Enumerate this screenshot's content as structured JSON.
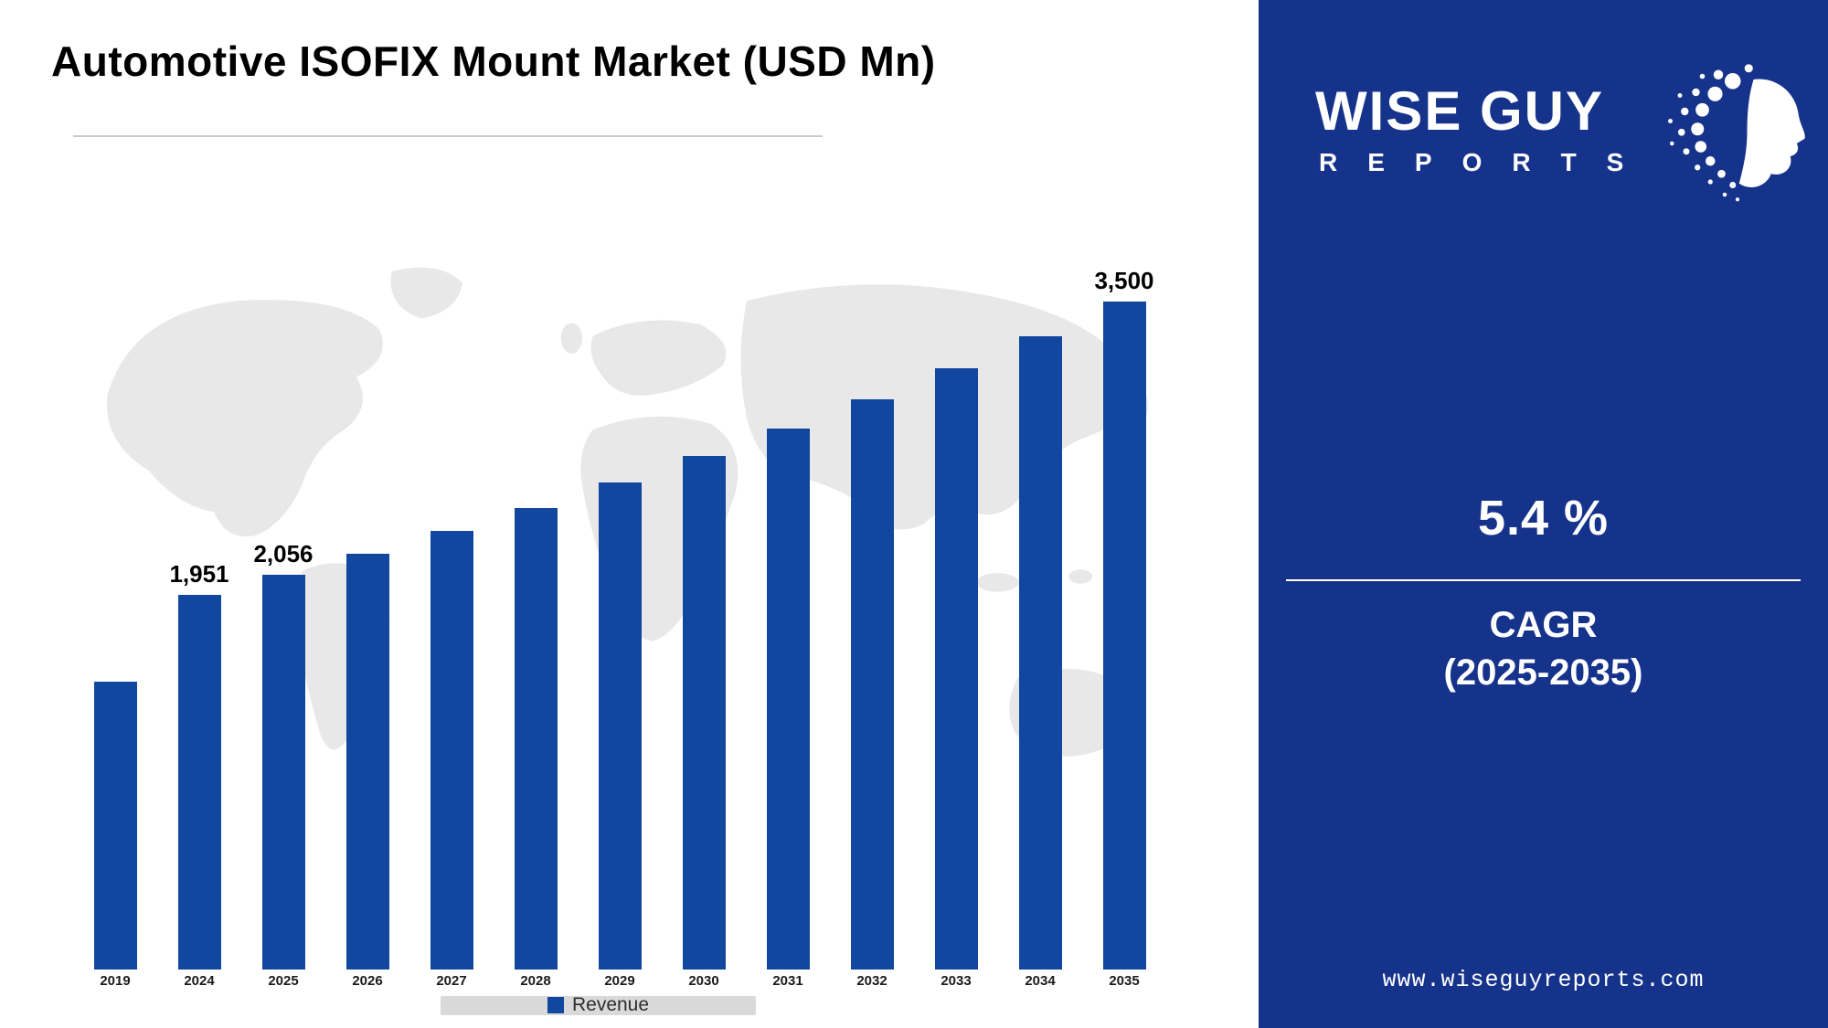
{
  "title": "Automotive ISOFIX Mount Market (USD Mn)",
  "chart_data": {
    "type": "bar",
    "title": "Automotive ISOFIX Mount Market (USD Mn)",
    "categories": [
      "2019",
      "2024",
      "2025",
      "2026",
      "2027",
      "2028",
      "2029",
      "2030",
      "2031",
      "2032",
      "2033",
      "2034",
      "2035"
    ],
    "values": [
      1500,
      1951,
      2056,
      2167,
      2284,
      2407,
      2537,
      2674,
      2819,
      2971,
      3131,
      3300,
      3500
    ],
    "value_labels": [
      "",
      "1,951",
      "2,056",
      "",
      "",
      "",
      "",
      "",
      "",
      "",
      "",
      "",
      "3,500"
    ],
    "legend_label": "Revenue",
    "legend_position": "bottom",
    "grid": "off",
    "xlabel": "",
    "ylabel": "",
    "ylim": [
      0,
      3500
    ],
    "bar_color": "#11479e"
  },
  "sidebar": {
    "logo_line1": "WISE GUY",
    "logo_line2": "REPORTS",
    "cagr_value": "5.4 %",
    "cagr_label": "CAGR",
    "cagr_period": "(2025-2035)",
    "website": "www.wiseguyreports.com",
    "background": "#16338b"
  }
}
